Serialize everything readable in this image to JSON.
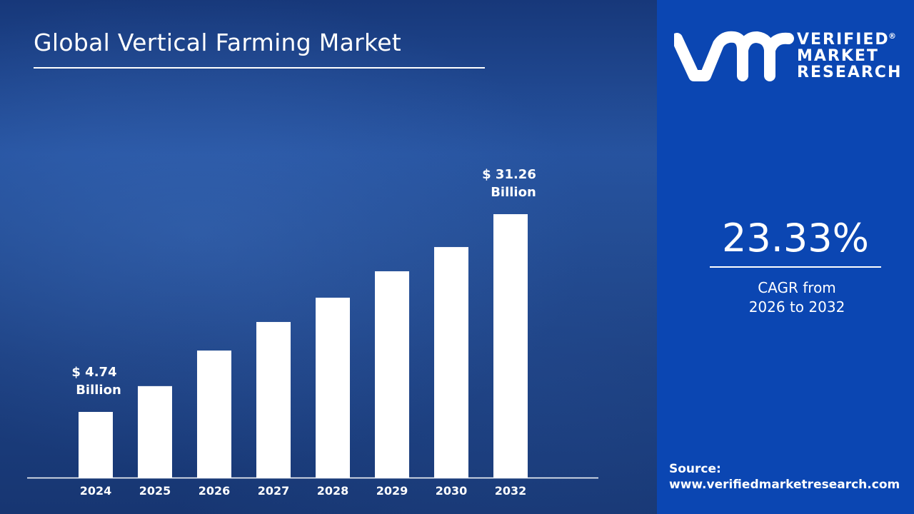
{
  "title": "Global Vertical Farming Market",
  "logo": {
    "text_lines": [
      "VERIFIED",
      "MARKET",
      "RESEARCH"
    ],
    "mark": "vmr",
    "registered": "®"
  },
  "cagr": {
    "value": "23.33%",
    "label_line1": "CAGR from",
    "label_line2": "2026 to 2032"
  },
  "source": {
    "label": "Source:",
    "url": "www.verifiedmarketresearch.com"
  },
  "colors": {
    "bars": "#ffffff",
    "right_panel": "#0b46b2",
    "background": "#1f4689"
  },
  "chart_data": {
    "type": "bar",
    "title": "Global Vertical Farming Market",
    "categories": [
      "2024",
      "2025",
      "2026",
      "2027",
      "2028",
      "2029",
      "2030",
      "2032"
    ],
    "values": [
      4.74,
      8.2,
      12.97,
      16.8,
      20.06,
      23.6,
      26.85,
      31.26
    ],
    "unit": "USD Billion",
    "annotations": [
      {
        "category": "2024",
        "line1": "$ 4.74",
        "line2": "Billion"
      },
      {
        "category": "2032",
        "line1": "$ 31.26",
        "line2": "Billion"
      }
    ],
    "grid": false,
    "legend": "none"
  }
}
